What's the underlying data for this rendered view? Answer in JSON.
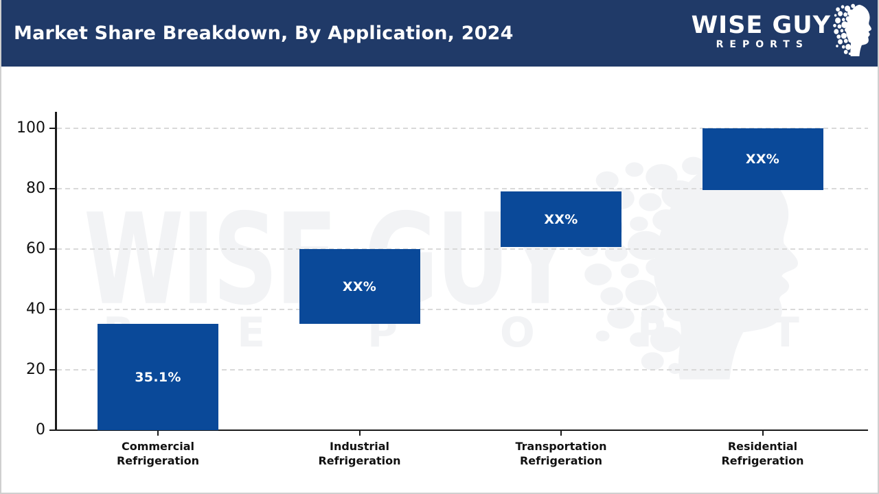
{
  "header": {
    "title": "Market Share Breakdown, By Application, 2024",
    "logo": {
      "name": "WISE GUY",
      "sub": "REPORTS"
    }
  },
  "watermark": {
    "name": "WISE GUY",
    "sub": "REPORTS"
  },
  "chart_data": {
    "type": "bar",
    "variant": "waterfall",
    "title": "Market Share Breakdown, By Application, 2024",
    "categories": [
      [
        "Commercial",
        "Refrigeration"
      ],
      [
        "Industrial",
        "Refrigeration"
      ],
      [
        "Transportation",
        "Refrigeration"
      ],
      [
        "Residential",
        "Refrigeration"
      ]
    ],
    "segments": [
      {
        "category": "Commercial Refrigeration",
        "from": 0,
        "to": 35.1,
        "label": "35.1%"
      },
      {
        "category": "Industrial Refrigeration",
        "from": 35.1,
        "to": 60,
        "label": "XX%"
      },
      {
        "category": "Transportation Refrigeration",
        "from": 60.5,
        "to": 79,
        "label": "XX%"
      },
      {
        "category": "Residential Refrigeration",
        "from": 79.5,
        "to": 100,
        "label": "XX%"
      }
    ],
    "ylim": [
      0,
      100
    ],
    "yticks": [
      0,
      20,
      40,
      60,
      80,
      100
    ],
    "grid": "horizontal dashed",
    "legend": false,
    "xlabel": "",
    "ylabel": ""
  },
  "colors": {
    "header_bg": "#203a68",
    "bar": "#0a4999",
    "bar_label": "#ffffff",
    "grid": "#d9d9d9",
    "axis": "#1a1a1a",
    "watermark": "#f2f3f5",
    "page_bg": "#ffffff"
  }
}
